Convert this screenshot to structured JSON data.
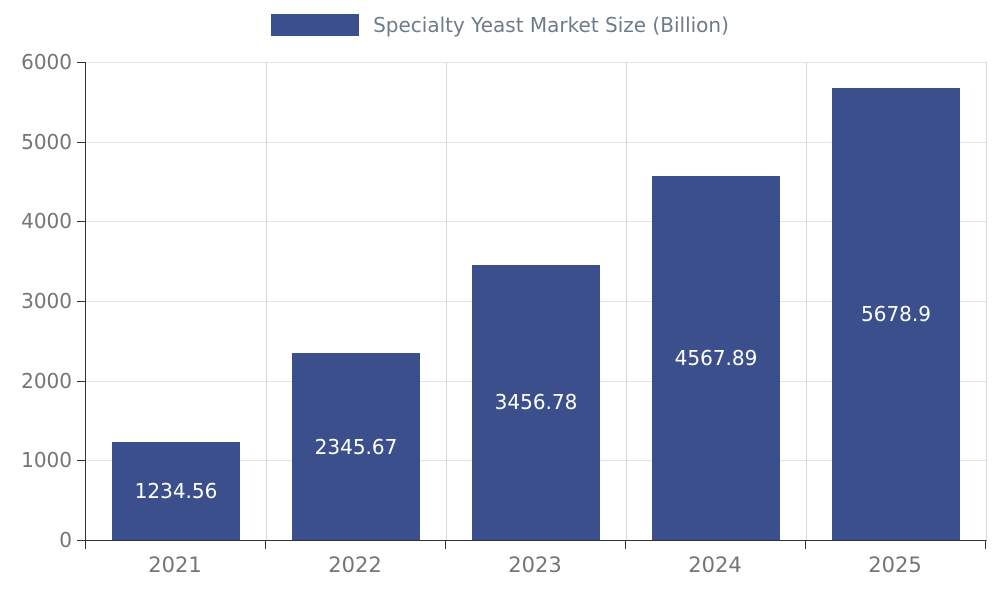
{
  "chart_data": {
    "type": "bar",
    "title": "Specialty Yeast Market Size (Billion)",
    "categories": [
      "2021",
      "2022",
      "2023",
      "2024",
      "2025"
    ],
    "values": [
      1234.56,
      2345.67,
      3456.78,
      4567.89,
      5678.9
    ],
    "value_labels": [
      "1234.56",
      "2345.67",
      "3456.78",
      "4567.89",
      "5678.9"
    ],
    "xlabel": "",
    "ylabel": "",
    "ylim": [
      0,
      6000
    ],
    "y_ticks": [
      0,
      1000,
      2000,
      3000,
      4000,
      5000,
      6000
    ],
    "legend_position": "top",
    "grid": true,
    "colors": {
      "bar": "#3A4F8C",
      "bar_label": "#ffffff",
      "title": "#6E7B8A",
      "tick": "#757575",
      "axis": "#333333",
      "hgrid": "#e3e3e3",
      "vgrid": "#d7d7d7"
    }
  }
}
